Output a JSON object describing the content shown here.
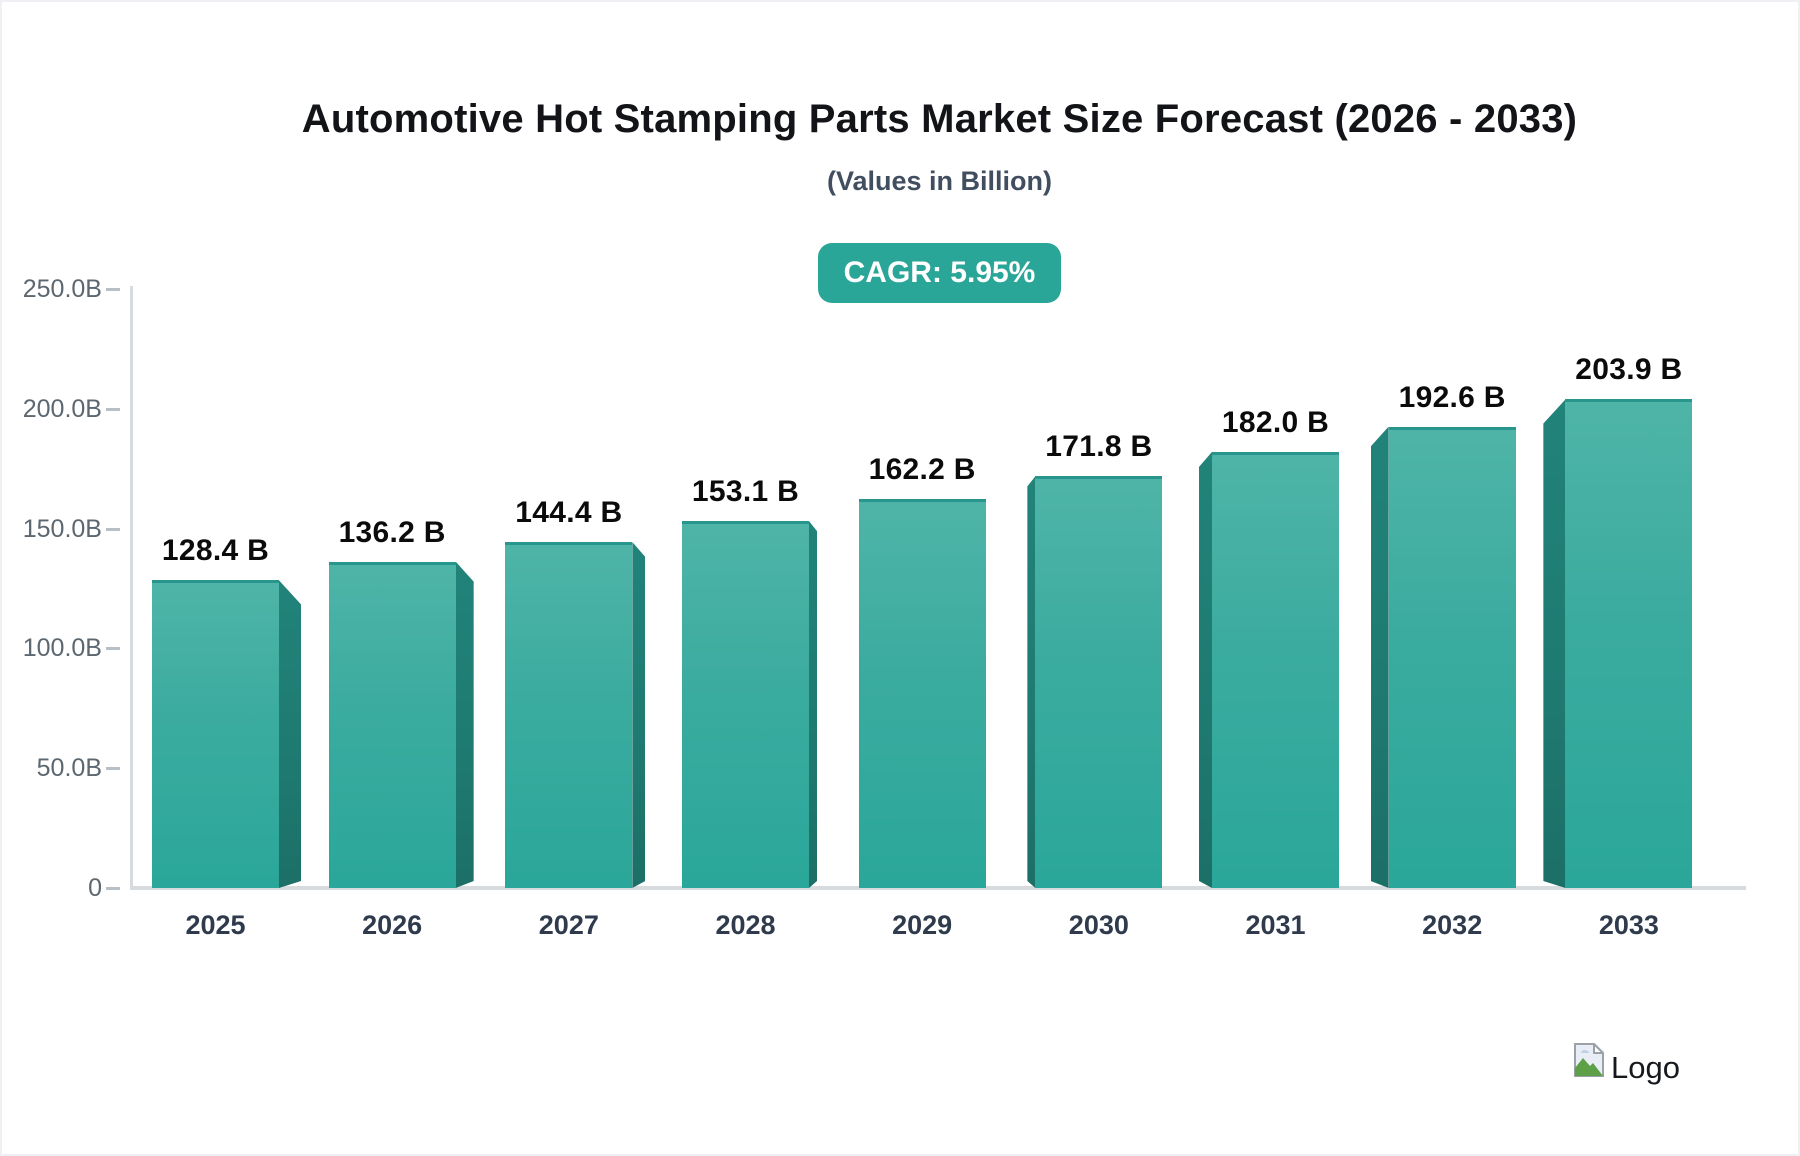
{
  "header": {
    "title": "Automotive Hot Stamping Parts Market Size Forecast (2026 - 2033)",
    "subtitle": "(Values in Billion)",
    "cagr_label": "CAGR: 5.95%"
  },
  "chart_data": {
    "type": "bar",
    "title": "Automotive Hot Stamping Parts Market Size Forecast (2026 - 2033)",
    "subtitle": "(Values in Billion)",
    "categories": [
      "2025",
      "2026",
      "2027",
      "2028",
      "2029",
      "2030",
      "2031",
      "2032",
      "2033"
    ],
    "values": [
      128.4,
      136.2,
      144.4,
      153.1,
      162.2,
      171.8,
      182.0,
      192.6,
      203.9
    ],
    "value_labels": [
      "128.4 B",
      "136.2 B",
      "144.4 B",
      "153.1 B",
      "162.2 B",
      "171.8 B",
      "182.0 B",
      "192.6 B",
      "203.9 B"
    ],
    "y_tick_labels": [
      "250.0B",
      "200.0B",
      "150.0B",
      "100.0B",
      "50.0B",
      "0"
    ],
    "ylim": [
      0,
      250
    ],
    "xlabel": "",
    "ylabel": "",
    "grid": false,
    "legend": false,
    "style": "3d-perspective-bars-toward-center"
  },
  "colors": {
    "bar_face_top": "#4fb4a8",
    "bar_face_bottom": "#2aa79a",
    "bar_side": "#1e7a71",
    "badge_background": "#2aa699",
    "badge_text": "#ffffff",
    "axis_line": "#d8dbde",
    "y_label_text": "#5c6770",
    "x_label_text": "#2f3b4d"
  },
  "logo": {
    "alt_text": "Logo"
  }
}
